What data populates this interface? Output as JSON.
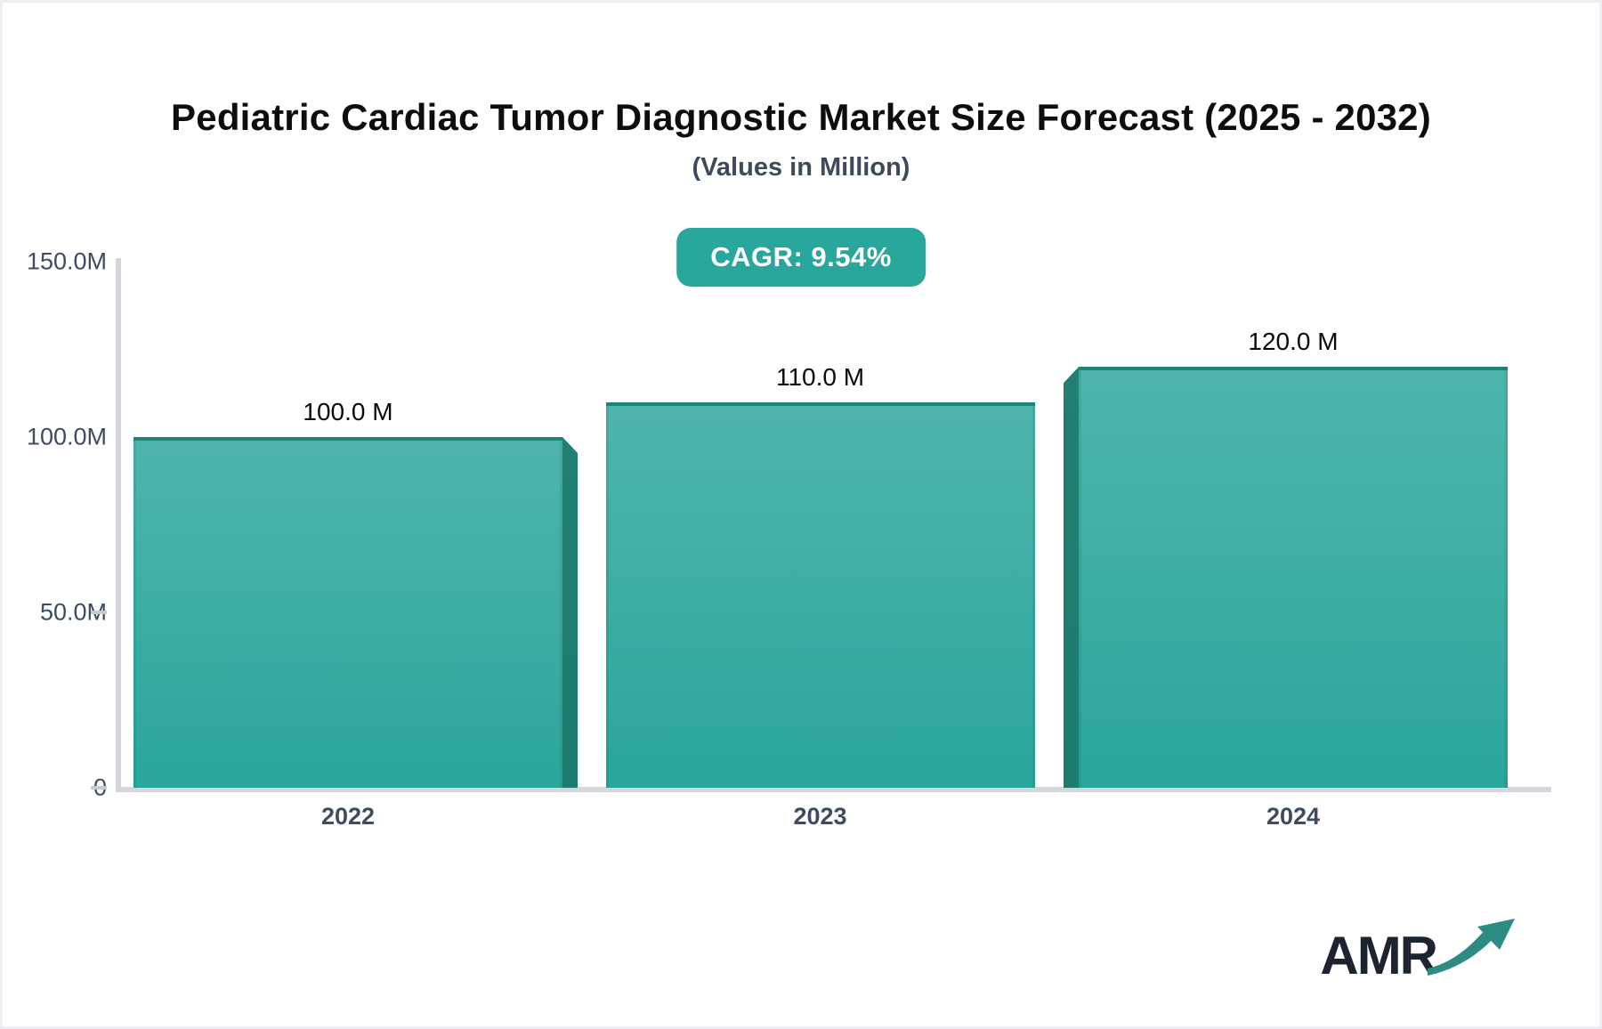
{
  "page": {
    "title": "Pediatric Cardiac Tumor Diagnostic Market Size Forecast (2025 - 2032)",
    "subtitle": "(Values in Million)",
    "cagr_label": "CAGR: 9.54%"
  },
  "chart_data": {
    "type": "bar",
    "title": "Pediatric Cardiac Tumor Diagnostic Market Size Forecast (2025 - 2032)",
    "subtitle": "(Values in Million)",
    "unit": "Million",
    "cagr": "9.54%",
    "categories": [
      "2022",
      "2023",
      "2024"
    ],
    "values": [
      100.0,
      110.0,
      120.0
    ],
    "value_labels": [
      "100.0 M",
      "110.0 M",
      "120.0 M"
    ],
    "ylim": [
      0,
      150
    ],
    "y_ticks": [
      {
        "value": 150,
        "label": "150.0M",
        "dash": false
      },
      {
        "value": 100,
        "label": "100.0M",
        "dash": false
      },
      {
        "value": 50,
        "label": "50.0M",
        "dash": true
      },
      {
        "value": 0,
        "label": "0",
        "dash": true
      }
    ],
    "grid": "off",
    "legend": "none",
    "bar_color_top": "#4fb5ac",
    "bar_color_bottom": "#2aa69b",
    "bar_side_color": "#1e7b6f"
  },
  "logo": {
    "text": "AMR",
    "arrow_icon": "trend-up-arrow",
    "text_color": "#1b2430",
    "arrow_color": "#2e8b84"
  },
  "colors": {
    "badge_bg": "#2aa79c",
    "badge_text": "#ffffff",
    "axis": "#d4d6db",
    "tick_text": "#3d4c63"
  }
}
